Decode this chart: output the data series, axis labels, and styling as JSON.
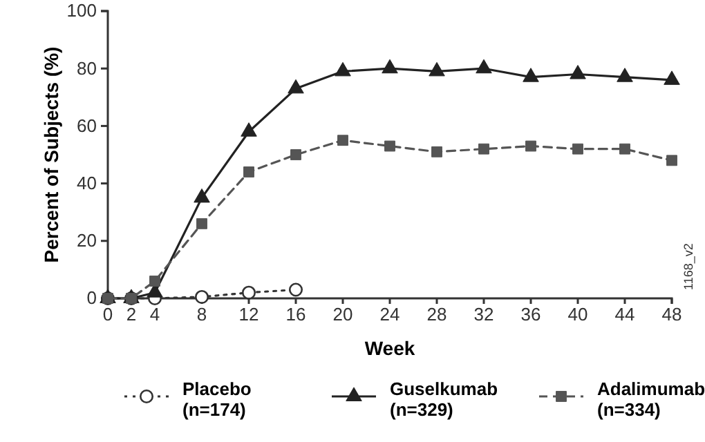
{
  "chart_data": {
    "type": "line",
    "xlabel": "Week",
    "ylabel": "Percent of Subjects (%)",
    "xlim": [
      0,
      48
    ],
    "xticks": [
      0,
      2,
      4,
      8,
      12,
      16,
      20,
      24,
      28,
      32,
      36,
      40,
      44,
      48
    ],
    "ylim": [
      0,
      100
    ],
    "yticks": [
      0,
      20,
      40,
      60,
      80,
      100
    ],
    "legend": "bottom",
    "annotations": [
      "1168_v2"
    ],
    "series": [
      {
        "name": "Placebo\n(n=174)",
        "color": "#333333",
        "marker": "circle",
        "line_style": "dotted",
        "x": [
          0,
          2,
          4,
          8,
          12,
          16
        ],
        "values": [
          0,
          0,
          0,
          0.5,
          2,
          3
        ]
      },
      {
        "name": "Guselkumab\n(n=329)",
        "color": "#222222",
        "marker": "triangle",
        "line_style": "solid",
        "x": [
          0,
          2,
          4,
          8,
          12,
          16,
          20,
          24,
          28,
          32,
          36,
          40,
          44,
          48
        ],
        "values": [
          0,
          0,
          2,
          35,
          58,
          73,
          79,
          80,
          79,
          80,
          77,
          78,
          77,
          76
        ]
      },
      {
        "name": "Adalimumab\n(n=334)",
        "color": "#555555",
        "marker": "square",
        "line_style": "dashed",
        "x": [
          0,
          2,
          4,
          8,
          12,
          16,
          20,
          24,
          28,
          32,
          36,
          40,
          44,
          48
        ],
        "values": [
          0,
          0,
          6,
          26,
          44,
          50,
          55,
          53,
          51,
          52,
          53,
          52,
          52,
          48
        ]
      }
    ]
  }
}
